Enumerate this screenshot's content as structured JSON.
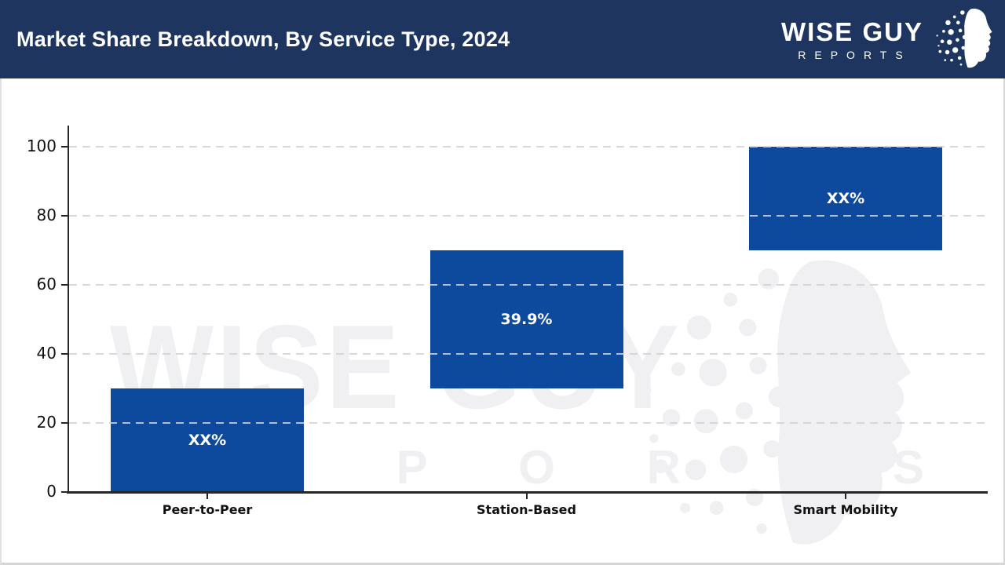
{
  "header": {
    "title": "Market Share Breakdown, By Service Type, 2024",
    "logo": {
      "line1": "WISE GUY",
      "line2": "REPORTS"
    }
  },
  "watermark": {
    "line1": "WISE GUY",
    "line2": "R E P O R T S"
  },
  "chart_data": {
    "type": "bar",
    "variant": "floating-waterfall-segments",
    "title": "Market Share Breakdown, By Service Type, 2024",
    "categories": [
      "Peer-to-Peer",
      "Station-Based",
      "Smart Mobility"
    ],
    "segments": [
      {
        "category": "Peer-to-Peer",
        "start": 0,
        "end": 30,
        "label": "XX%"
      },
      {
        "category": "Station-Based",
        "start": 30,
        "end": 69.9,
        "label": "39.9%"
      },
      {
        "category": "Smart Mobility",
        "start": 69.9,
        "end": 100,
        "label": "XX%"
      }
    ],
    "xlabel": "",
    "ylabel": "",
    "yticks": [
      0,
      20,
      40,
      60,
      80,
      100
    ],
    "ylim": [
      0,
      106
    ],
    "grid": "horizontal-dashed",
    "legend": "none",
    "colors": {
      "bar": "#0d4a9e",
      "bar_label": "#ffffff",
      "axis": "#262626",
      "tick_label": "#111111",
      "gridline": "#d2d2d2",
      "header_bg": "#1e355f",
      "header_text": "#ffffff",
      "watermark": "#f0f0f2"
    }
  }
}
